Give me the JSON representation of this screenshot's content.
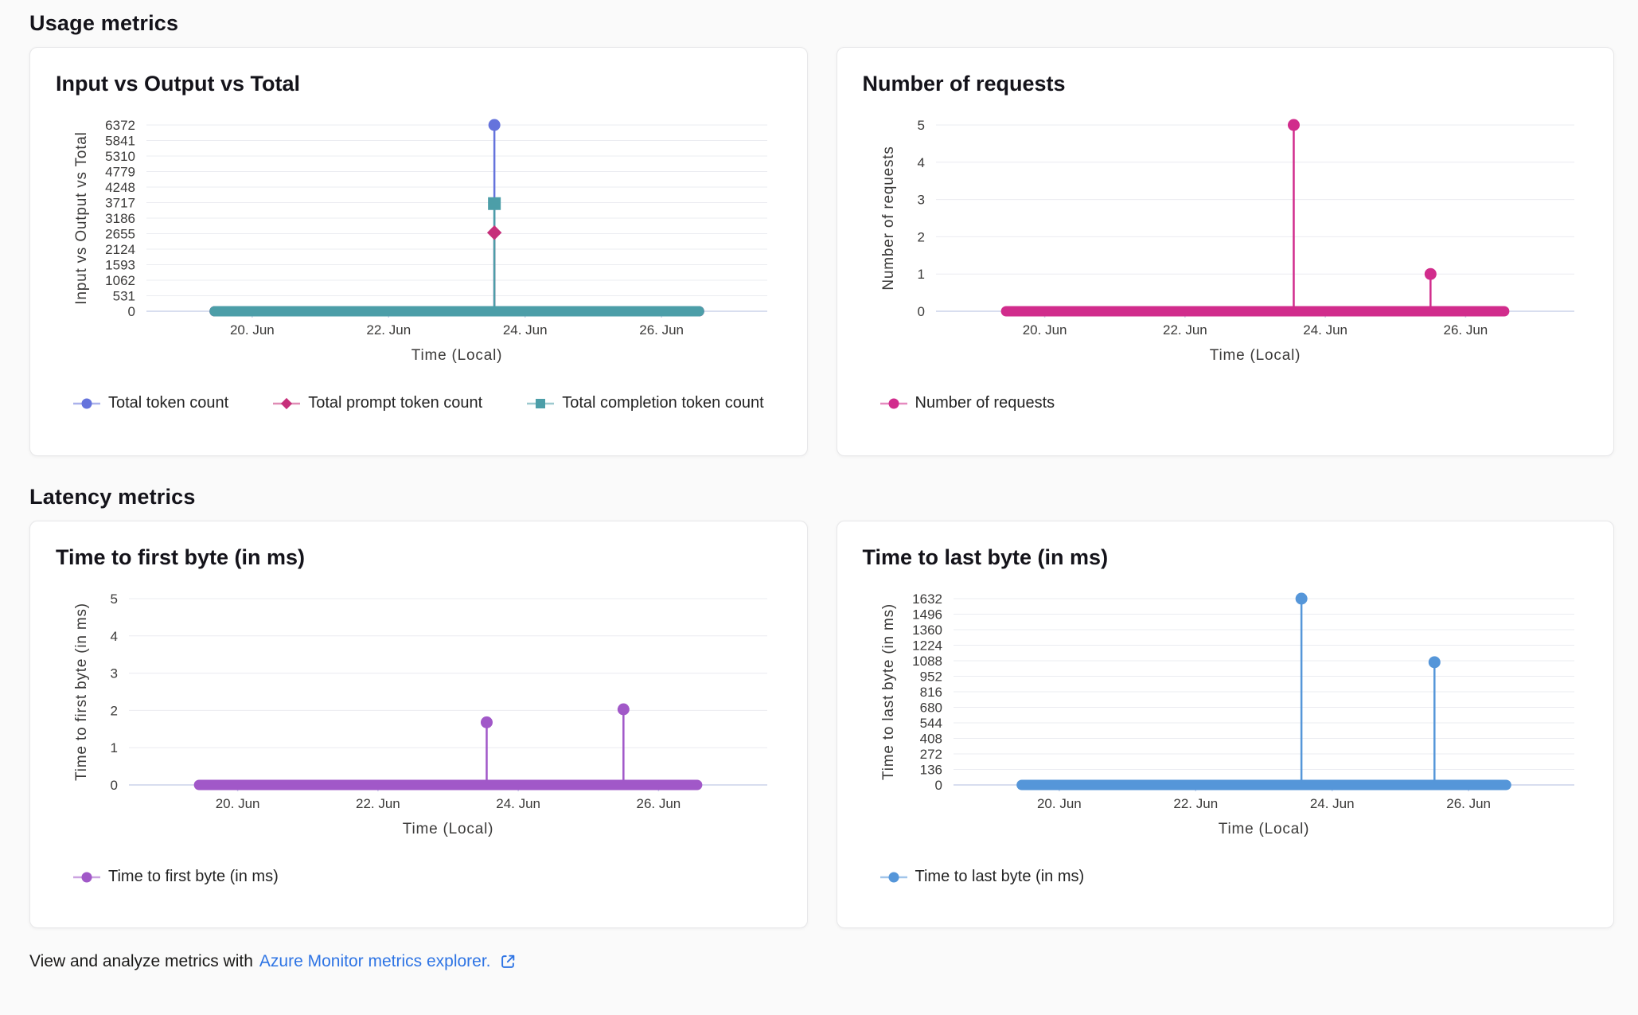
{
  "sections": [
    {
      "heading": "Usage metrics"
    },
    {
      "heading": "Latency metrics"
    }
  ],
  "footer": {
    "prefix": "View and analyze metrics with ",
    "link_label": "Azure Monitor metrics explorer.",
    "link_color": "#2E74E4",
    "external_link_icon": "external-link-icon"
  },
  "colors": {
    "page_background": "#fafafa",
    "card_background": "#ffffff",
    "gridline": "#ebecf1",
    "zero_axis_line": "#cbd3ea",
    "tick_text": "#3b3a39",
    "total_token_blue": "#6573DC",
    "prompt_token_pink": "#C62F7A",
    "completion_token_teal": "#4C9EA8",
    "requests_magenta": "#D12C8C",
    "ttfb_purple": "#A158C8",
    "ttlb_blue": "#5596D9"
  },
  "chart_data": [
    {
      "type": "line",
      "title": "Input vs Output vs Total",
      "xlabel": "Time (Local)",
      "ylabel": "Input vs Output vs Total",
      "x_unit": "day of June (local time)",
      "x_domain": [
        18.45,
        27.55
      ],
      "x_tick_values": [
        20,
        22,
        24,
        26
      ],
      "x_tick_labels": [
        "20. Jun",
        "22. Jun",
        "24. Jun",
        "26. Jun"
      ],
      "y_ticks": [
        0,
        531,
        1062,
        1593,
        2124,
        2655,
        3186,
        3717,
        4248,
        4779,
        5310,
        5841,
        6372
      ],
      "ylim": [
        0,
        6372
      ],
      "grid": true,
      "legend_position": "bottom-left",
      "series": [
        {
          "name": "Total token count",
          "color": "#6573DC",
          "marker": "circle",
          "band": {
            "from": 19.45,
            "to": 26.55,
            "y": 0
          },
          "spikes": [
            {
              "x": 23.55,
              "y": 6372
            }
          ]
        },
        {
          "name": "Total prompt token count",
          "color": "#C62F7A",
          "marker": "diamond",
          "band": {
            "from": 19.45,
            "to": 26.55,
            "y": 0
          },
          "spikes": [
            {
              "x": 23.55,
              "y": 2689
            }
          ]
        },
        {
          "name": "Total completion token count",
          "color": "#4C9EA8",
          "marker": "square",
          "band": {
            "from": 19.45,
            "to": 26.55,
            "y": 0
          },
          "spikes": [
            {
              "x": 23.55,
              "y": 3683
            }
          ]
        }
      ]
    },
    {
      "type": "line",
      "title": "Number of requests",
      "xlabel": "Time (Local)",
      "ylabel": "Number of requests",
      "x_unit": "day of June (local time)",
      "x_domain": [
        18.45,
        27.55
      ],
      "x_tick_values": [
        20,
        22,
        24,
        26
      ],
      "x_tick_labels": [
        "20. Jun",
        "22. Jun",
        "24. Jun",
        "26. Jun"
      ],
      "y_ticks": [
        0,
        1,
        2,
        3,
        4,
        5
      ],
      "ylim": [
        0,
        5
      ],
      "grid": true,
      "legend_position": "bottom-left",
      "series": [
        {
          "name": "Number of requests",
          "color": "#D12C8C",
          "marker": "circle",
          "band": {
            "from": 19.45,
            "to": 26.55,
            "y": 0
          },
          "spikes": [
            {
              "x": 23.55,
              "y": 5
            },
            {
              "x": 25.5,
              "y": 1
            }
          ]
        }
      ]
    },
    {
      "type": "line",
      "title": "Time to first byte (in ms)",
      "xlabel": "Time (Local)",
      "ylabel": "Time to first byte (in ms)",
      "x_unit": "day of June (local time)",
      "x_domain": [
        18.45,
        27.55
      ],
      "x_tick_values": [
        20,
        22,
        24,
        26
      ],
      "x_tick_labels": [
        "20. Jun",
        "22. Jun",
        "24. Jun",
        "26. Jun"
      ],
      "y_ticks": [
        0,
        1,
        2,
        3,
        4,
        5
      ],
      "ylim": [
        0,
        5
      ],
      "grid": true,
      "legend_position": "bottom-left",
      "series": [
        {
          "name": "Time to first byte (in ms)",
          "color": "#A158C8",
          "marker": "circle",
          "band": {
            "from": 19.45,
            "to": 26.55,
            "y": 0
          },
          "spikes": [
            {
              "x": 23.55,
              "y": 1.68
            },
            {
              "x": 25.5,
              "y": 2.03
            }
          ]
        }
      ]
    },
    {
      "type": "line",
      "title": "Time to last byte (in ms)",
      "xlabel": "Time (Local)",
      "ylabel": "Time to last byte (in ms)",
      "x_unit": "day of June (local time)",
      "x_domain": [
        18.45,
        27.55
      ],
      "x_tick_values": [
        20,
        22,
        24,
        26
      ],
      "x_tick_labels": [
        "20. Jun",
        "22. Jun",
        "24. Jun",
        "26. Jun"
      ],
      "y_ticks": [
        0,
        136,
        272,
        408,
        544,
        680,
        816,
        952,
        1088,
        1224,
        1360,
        1496,
        1632
      ],
      "ylim": [
        0,
        1632
      ],
      "grid": true,
      "legend_position": "bottom-left",
      "series": [
        {
          "name": "Time to last byte (in ms)",
          "color": "#5596D9",
          "marker": "circle",
          "band": {
            "from": 19.45,
            "to": 26.55,
            "y": 0
          },
          "spikes": [
            {
              "x": 23.55,
              "y": 1632
            },
            {
              "x": 25.5,
              "y": 1075
            }
          ]
        }
      ]
    }
  ]
}
